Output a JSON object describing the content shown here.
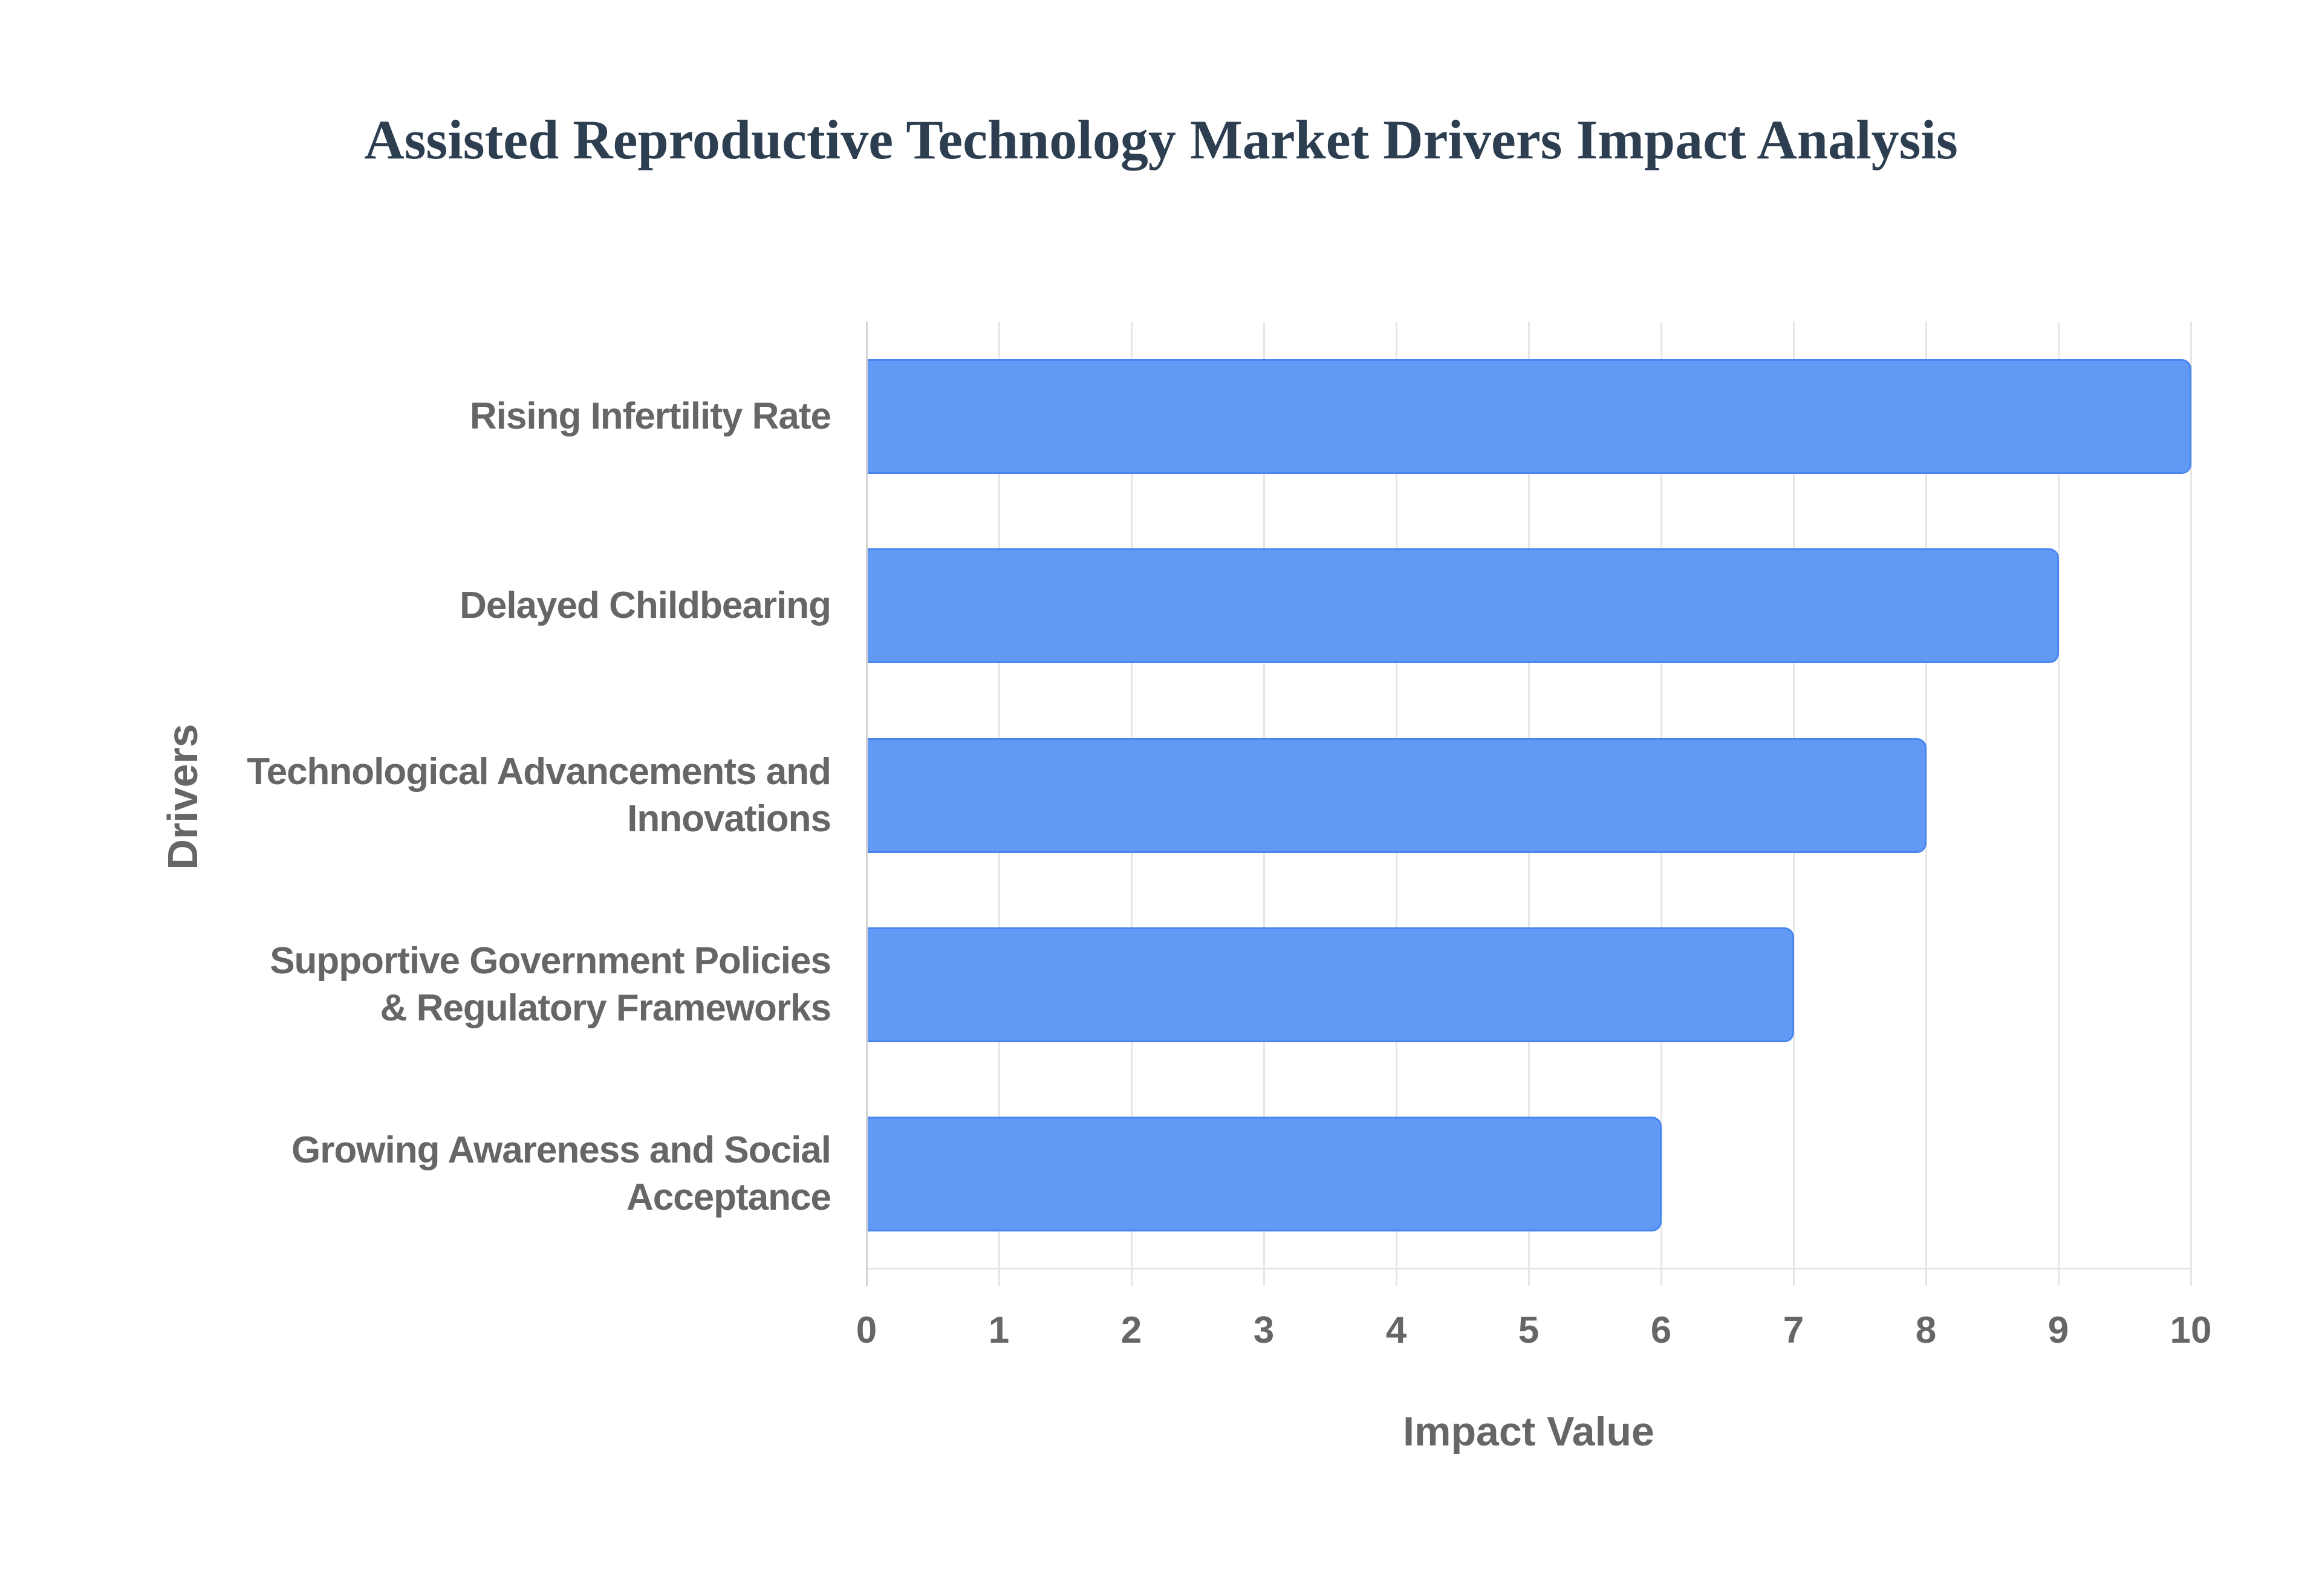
{
  "chart_data": {
    "type": "bar",
    "orientation": "horizontal",
    "title": "Assisted Reproductive Technology Market Drivers Impact Analysis",
    "xlabel": "Impact Value",
    "ylabel": "Drivers",
    "categories": [
      "Rising Infertility Rate",
      "Delayed Childbearing",
      "Technological Advancements and Innovations",
      "Supportive Government Policies & Regulatory Frameworks",
      "Growing Awareness and Social Acceptance"
    ],
    "category_lines": [
      [
        "Rising Infertility Rate"
      ],
      [
        "Delayed Childbearing"
      ],
      [
        "Technological Advancements and",
        "Innovations"
      ],
      [
        "Supportive Government Policies",
        "& Regulatory Frameworks"
      ],
      [
        "Growing Awareness and Social",
        "Acceptance"
      ]
    ],
    "values": [
      10,
      9,
      8,
      7,
      6
    ],
    "xlim": [
      0,
      10
    ],
    "x_ticks": [
      "0",
      "1",
      "2",
      "3",
      "4",
      "5",
      "6",
      "7",
      "8",
      "9",
      "10"
    ],
    "grid": true,
    "legend": "none",
    "colors": {
      "bar_fill": "#6199f5",
      "bar_border": "#4a86f0",
      "title": "#2c3e50",
      "axis_text": "#666666",
      "grid": "#e6e6e6"
    }
  }
}
